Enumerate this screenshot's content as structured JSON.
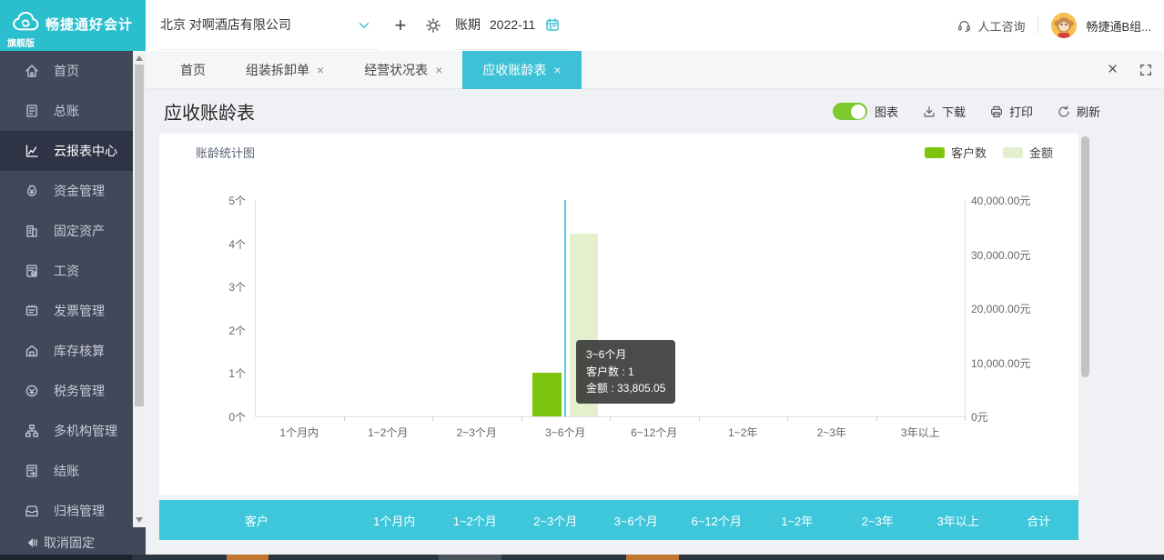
{
  "topbar": {
    "brand": {
      "name": "畅捷通好会计",
      "edition": "旗舰版"
    },
    "company": "北京 对啊酒店有限公司",
    "plus": "+",
    "period_label": "账期",
    "period_value": "2022-11",
    "support": "人工咨询",
    "user": "畅捷通B组..."
  },
  "sidebar": {
    "items": [
      {
        "label": "首页",
        "icon": "home-icon",
        "active": false
      },
      {
        "label": "总账",
        "icon": "ledger-icon",
        "active": false
      },
      {
        "label": "云报表中心",
        "icon": "cloud-report-icon",
        "active": true
      },
      {
        "label": "资金管理",
        "icon": "money-bag-icon",
        "active": false
      },
      {
        "label": "固定资产",
        "icon": "building-icon",
        "active": false
      },
      {
        "label": "工资",
        "icon": "salary-icon",
        "active": false
      },
      {
        "label": "发票管理",
        "icon": "invoice-icon",
        "active": false
      },
      {
        "label": "库存核算",
        "icon": "inventory-icon",
        "active": false
      },
      {
        "label": "税务管理",
        "icon": "tax-icon",
        "active": false
      },
      {
        "label": "多机构管理",
        "icon": "multi-org-icon",
        "active": false
      },
      {
        "label": "结账",
        "icon": "closing-icon",
        "active": false
      },
      {
        "label": "归档管理",
        "icon": "archive-icon",
        "active": false
      }
    ],
    "unpin_label": "取消固定"
  },
  "tabbar": {
    "tabs": [
      {
        "label": "首页",
        "closable": false,
        "active": false
      },
      {
        "label": "组装拆卸单",
        "closable": true,
        "active": false
      },
      {
        "label": "经营状况表",
        "closable": true,
        "active": false
      },
      {
        "label": "应收账龄表",
        "closable": true,
        "active": true
      }
    ]
  },
  "page": {
    "title": "应收账龄表",
    "toggle_label": "图表",
    "toggle_on": true,
    "actions": [
      {
        "label": "下载",
        "icon": "download-icon"
      },
      {
        "label": "打印",
        "icon": "print-icon"
      },
      {
        "label": "刷新",
        "icon": "refresh-icon"
      }
    ]
  },
  "chart_data": {
    "type": "bar",
    "title": "账龄统计图",
    "categories": [
      "1个月内",
      "1~2个月",
      "2~3个月",
      "3~6个月",
      "6~12个月",
      "1~2年",
      "2~3年",
      "3年以上"
    ],
    "series": [
      {
        "name": "客户数",
        "axis": "left",
        "color": "#7CC50C",
        "values": [
          0,
          0,
          0,
          1,
          0,
          0,
          0,
          0
        ]
      },
      {
        "name": "金额",
        "axis": "right",
        "color": "#E4F0CD",
        "values": [
          0,
          0,
          0,
          33805.05,
          0,
          0,
          0,
          0
        ]
      }
    ],
    "left_axis": {
      "ticks": [
        "0个",
        "1个",
        "2个",
        "3个",
        "4个",
        "5个"
      ],
      "min": 0,
      "max": 5
    },
    "right_axis": {
      "ticks": [
        "0元",
        "10,000.00元",
        "20,000.00元",
        "30,000.00元",
        "40,000.00元"
      ],
      "min": 0,
      "max": 40000
    },
    "grid": false,
    "legend_position": "top-right",
    "tooltip": {
      "category": "3~6个月",
      "lines": [
        "3~6个月",
        "客户数 : 1",
        "金额 : 33,805.05"
      ]
    }
  },
  "table": {
    "columns": [
      "客户",
      "1个月内",
      "1~2个月",
      "2~3个月",
      "3~6个月",
      "6~12个月",
      "1~2年",
      "2~3年",
      "3年以上",
      "合计"
    ]
  },
  "colors": {
    "accent_teal": "#2BBFCE",
    "tab_active": "#3EC1D7",
    "sidebar_bg": "#424859",
    "sidebar_active": "#2E3345",
    "customer_green": "#7CC50C",
    "amount_green": "#E4F0CD",
    "toggle_green": "#7DC92E",
    "table_header_cyan": "#3EC7DB",
    "pointer_blue": "#58CAE8"
  }
}
